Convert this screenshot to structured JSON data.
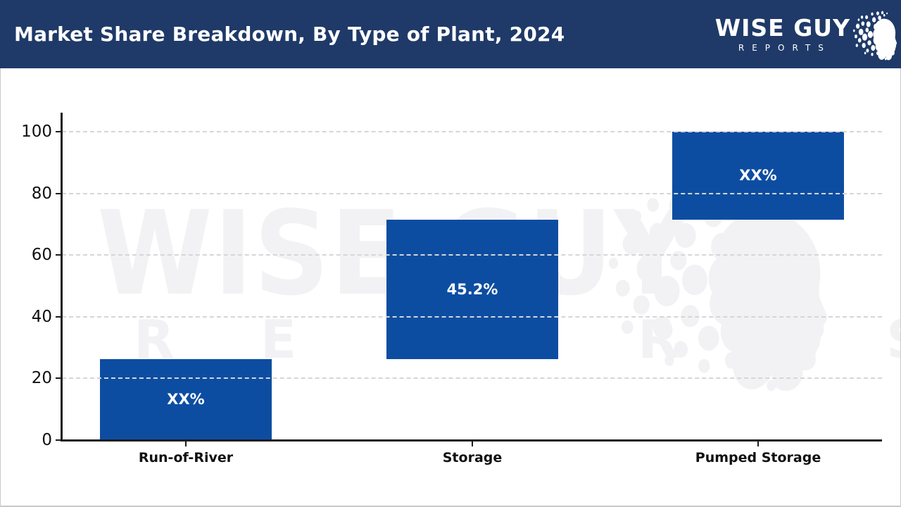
{
  "header": {
    "title": "Market Share Breakdown, By Type of Plant, 2024",
    "logo": {
      "line1": "WISE GUY",
      "line2": "REPORTS"
    }
  },
  "watermark": {
    "line1": "WISE GUY",
    "line2": "REPORTS"
  },
  "chart_data": {
    "type": "bar",
    "subtype": "waterfall-floating-segments",
    "title": "Market Share Breakdown, By Type of Plant, 2024",
    "categories": [
      "Run-of-River",
      "Storage",
      "Pumped Storage"
    ],
    "bars": [
      {
        "category": "Run-of-River",
        "start": 0,
        "end": 26.3,
        "label": "XX%"
      },
      {
        "category": "Storage",
        "start": 26.3,
        "end": 71.5,
        "label": "45.2%"
      },
      {
        "category": "Pumped Storage",
        "start": 71.5,
        "end": 100,
        "label": "XX%"
      }
    ],
    "xlabel": "",
    "ylabel": "",
    "ylim": [
      0,
      100
    ],
    "yticks": [
      0,
      20,
      40,
      60,
      80,
      100
    ],
    "grid": "horizontal-dashed-over-bars",
    "legend": "none"
  },
  "colors": {
    "header_bg": "#1F3A68",
    "bar": "#0D4DA1",
    "grid": "#D6D6D6",
    "axis": "#1C1C1C",
    "watermark": "#F2F2F4",
    "bar_label_text": "#FFFFFF",
    "title_text": "#FFFFFF"
  }
}
